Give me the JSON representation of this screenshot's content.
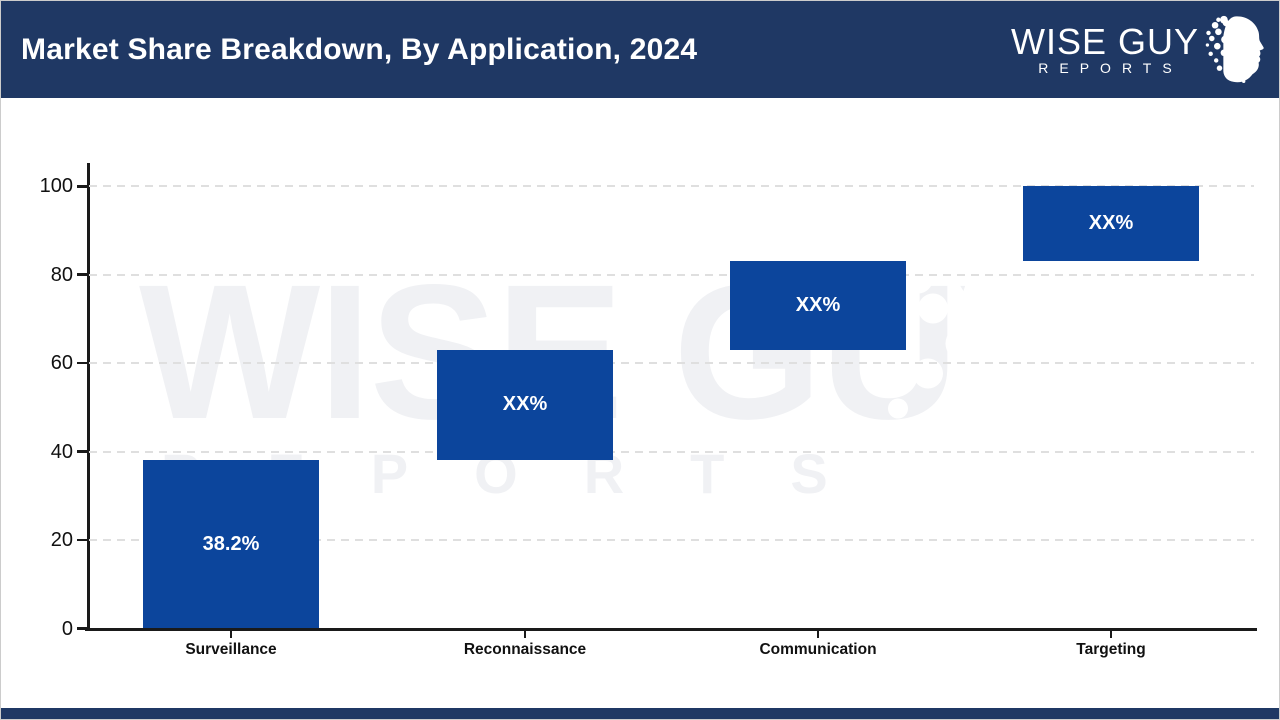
{
  "header": {
    "title": "Market Share Breakdown, By Application, 2024",
    "logo": {
      "line1": "WISE GUY",
      "line2": "REPORTS"
    }
  },
  "watermark": {
    "line1": "WISE GUY",
    "line2": "REPORTS"
  },
  "chart_data": {
    "type": "bar",
    "subtype": "waterfall",
    "title": "Market Share Breakdown, By Application, 2024",
    "categories": [
      "Surveillance",
      "Reconnaissance",
      "Communication",
      "Targeting"
    ],
    "segments": [
      {
        "category": "Surveillance",
        "start": 0,
        "end": 38.2,
        "value": 38.2,
        "label": "38.2%"
      },
      {
        "category": "Reconnaissance",
        "start": 38.2,
        "end": 63,
        "value": 24.8,
        "label": "XX%"
      },
      {
        "category": "Communication",
        "start": 63,
        "end": 83,
        "value": 20,
        "label": "XX%"
      },
      {
        "category": "Targeting",
        "start": 83,
        "end": 100,
        "value": 17,
        "label": "XX%"
      }
    ],
    "xlabel": "",
    "ylabel": "",
    "ylim": [
      0,
      100
    ],
    "yticks": [
      0,
      20,
      40,
      60,
      80,
      100
    ],
    "grid": "horizontal-dashed",
    "legend": "none",
    "bar_color": "#0c459c",
    "bar_label_color": "#ffffff"
  },
  "colors": {
    "header_bg": "#1f3864",
    "footer_bg": "#1f3864",
    "bar": "#0c459c",
    "grid": "#dfdfdf",
    "watermark": "#f0f1f4",
    "axis": "#1a1a1a"
  }
}
